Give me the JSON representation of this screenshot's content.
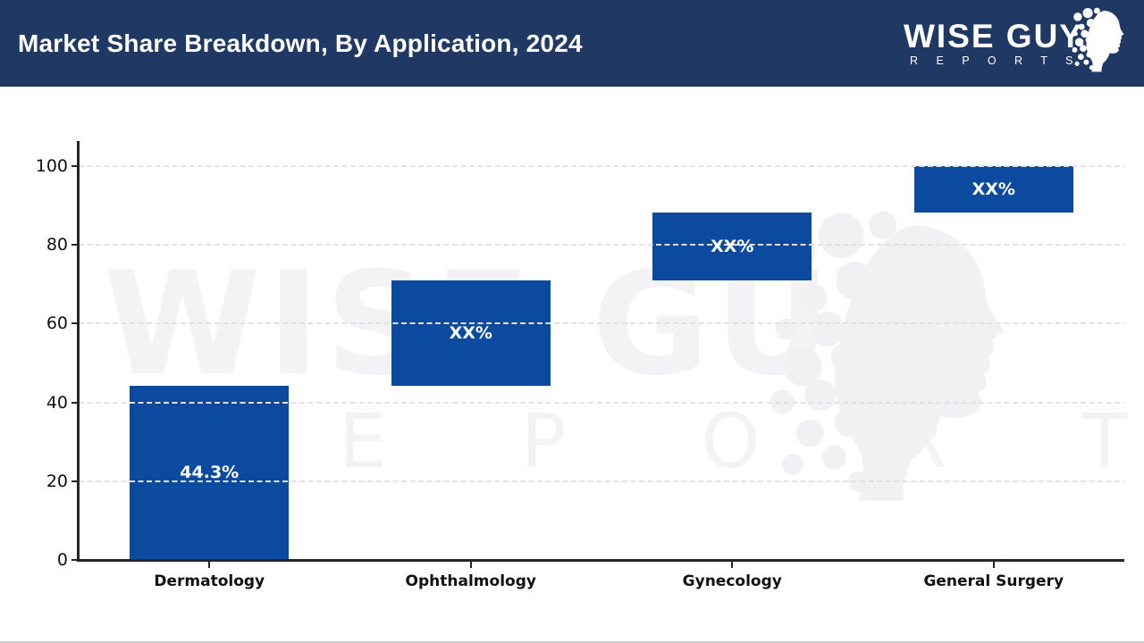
{
  "header": {
    "title": "Market Share Breakdown, By Application, 2024",
    "background_color": "#1f3864",
    "logo": {
      "line1": "WISE GUY",
      "line2": "R E P O R T S"
    }
  },
  "watermark": {
    "line1": "WISE GUY",
    "line2": "R E P O R T S"
  },
  "chart_data": {
    "type": "bar",
    "subtype": "waterfall",
    "title": "Market Share Breakdown, By Application, 2024",
    "xlabel": "",
    "ylabel": "",
    "ylim": [
      0,
      100
    ],
    "yticks": [
      0,
      20,
      40,
      60,
      80,
      100
    ],
    "grid": "dashed-horizontal-on",
    "legend": "none",
    "bar_color": "#0b4a9e",
    "bar_label_color": "#ffffff",
    "axis_color": "#262626",
    "gridline_color": "#e2e2e2",
    "categories": [
      "Dermatology",
      "Ophthalmology",
      "Gynecology",
      "General Surgery"
    ],
    "segments": [
      {
        "category": "Dermatology",
        "start": 0,
        "end": 44.3,
        "label": "44.3%"
      },
      {
        "category": "Ophthalmology",
        "start": 44.3,
        "end": 71.0,
        "label": "XX%"
      },
      {
        "category": "Gynecology",
        "start": 71.0,
        "end": 88.3,
        "label": "XX%"
      },
      {
        "category": "General Surgery",
        "start": 88.3,
        "end": 100.0,
        "label": "XX%"
      }
    ]
  }
}
